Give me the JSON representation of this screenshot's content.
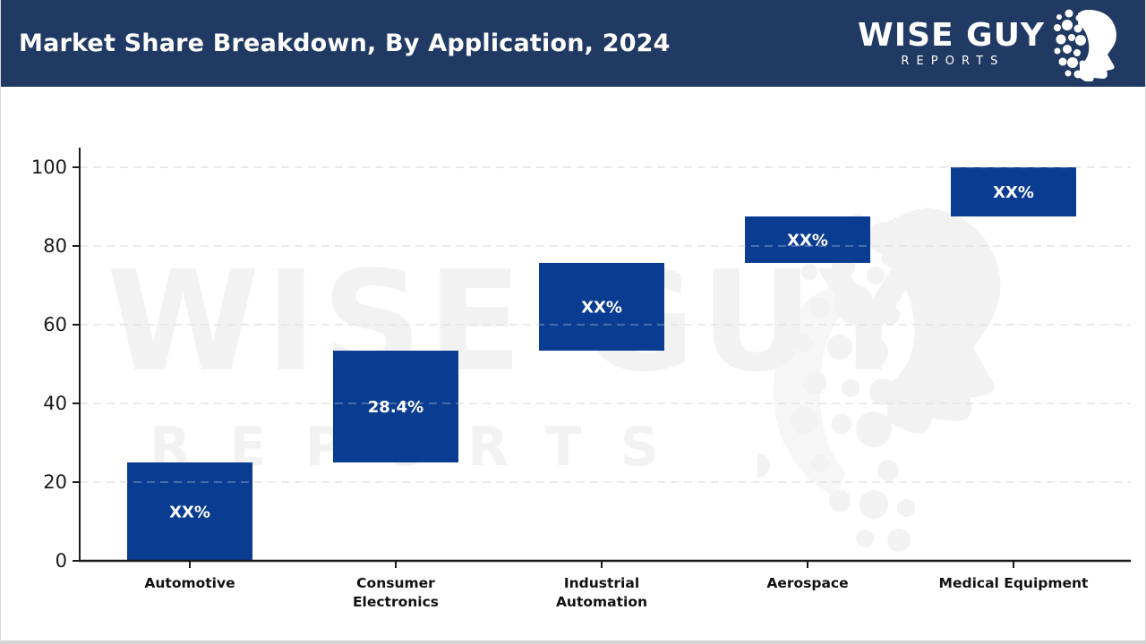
{
  "header": {
    "title": "Market Share Breakdown, By Application, 2024",
    "logo": {
      "name": "WISE GUY",
      "sub": "REPORTS"
    }
  },
  "watermark": {
    "line1": "WISE GUY",
    "line2": "REPORTS"
  },
  "colors": {
    "header_bg": "#213a63",
    "bar": "#0a3d91",
    "bar_label_text": "#ffffff",
    "grid": "#d9d9d9",
    "axis": "#1a1a1a",
    "tick_label": "#1a1a1a",
    "category_label": "#111111",
    "watermark": "#f2f2f2",
    "page_border": "#d4d4d4"
  },
  "chart_data": {
    "type": "bar",
    "subtype": "waterfall",
    "title": "Market Share Breakdown, By Application, 2024",
    "xlabel": "",
    "ylabel": "",
    "ylim": [
      0,
      105
    ],
    "yticks": [
      0,
      20,
      40,
      60,
      80,
      100
    ],
    "grid": "horizontal dashed",
    "legend": "none",
    "categories": [
      "Automotive",
      "Consumer Electronics",
      "Industrial Automation",
      "Aerospace",
      "Medical Equipment"
    ],
    "segments": [
      {
        "category": "Automotive",
        "lines": [
          "Automotive"
        ],
        "start": 0,
        "end": 25.0,
        "value": 25.0,
        "label": "XX%"
      },
      {
        "category": "Consumer Electronics",
        "lines": [
          "Consumer",
          "Electronics"
        ],
        "start": 25.0,
        "end": 53.4,
        "value": 28.4,
        "label": "28.4%"
      },
      {
        "category": "Industrial Automation",
        "lines": [
          "Industrial",
          "Automation"
        ],
        "start": 53.4,
        "end": 75.7,
        "value": 22.3,
        "label": "XX%"
      },
      {
        "category": "Aerospace",
        "lines": [
          "Aerospace"
        ],
        "start": 75.7,
        "end": 87.5,
        "value": 11.8,
        "label": "XX%"
      },
      {
        "category": "Medical Equipment",
        "lines": [
          "Medical Equipment"
        ],
        "start": 87.5,
        "end": 100,
        "value": 12.5,
        "label": "XX%"
      }
    ]
  }
}
